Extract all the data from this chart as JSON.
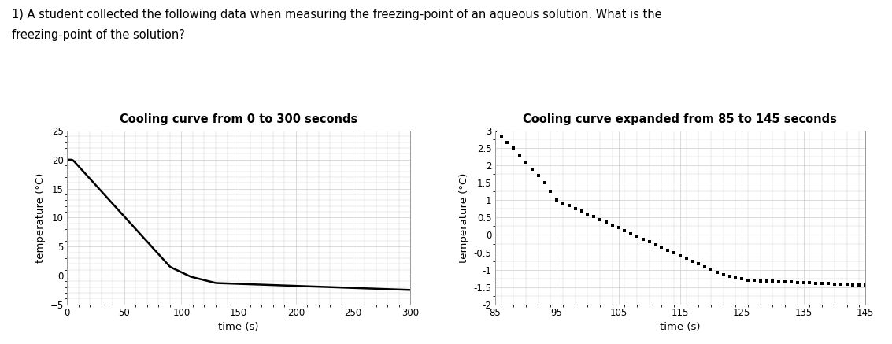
{
  "question_line1": "1) A student collected the following data when measuring the freezing-point of an aqueous solution. What is the",
  "question_line2": "freezing-point of the solution?",
  "chart1_title": "Cooling curve from 0 to 300 seconds",
  "chart2_title": "Cooling curve expanded from 85 to 145 seconds",
  "xlabel": "time (s)",
  "ylabel": "temperature (°C)",
  "chart1_xlim": [
    0,
    300
  ],
  "chart1_ylim": [
    -5,
    25
  ],
  "chart1_xticks": [
    0,
    50,
    100,
    150,
    200,
    250,
    300
  ],
  "chart1_yticks": [
    -5,
    0,
    5,
    10,
    15,
    20,
    25
  ],
  "chart2_xlim": [
    85,
    145
  ],
  "chart2_ylim": [
    -2,
    3
  ],
  "chart2_xticks": [
    85,
    95,
    105,
    115,
    125,
    135,
    145
  ],
  "chart2_yticks": [
    -2,
    -1.5,
    -1,
    -0.5,
    0,
    0.5,
    1,
    1.5,
    2,
    2.5,
    3
  ],
  "background_color": "#ffffff",
  "grid_color": "#cccccc",
  "line_color": "#000000",
  "title_fontsize": 10.5,
  "axis_label_fontsize": 9.5,
  "tick_fontsize": 8.5,
  "question_fontsize": 10.5
}
